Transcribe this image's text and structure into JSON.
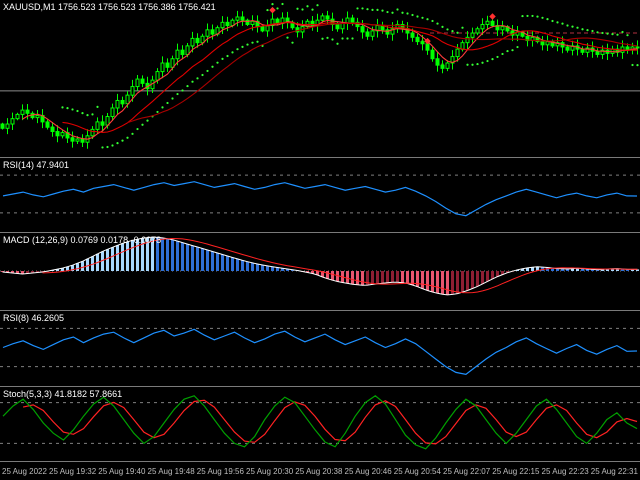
{
  "header": {
    "symbol_period_ohlc": "XAUUSD,M1 1756.523 1756.523 1756.386 1756.421"
  },
  "panel_labels": {
    "main": "XAUUSD,M1 1756.523 1756.523 1756.386 1756.421",
    "rsi14": "RSI(14) 47.9401",
    "macd": "MACD (12,26,9) 0.0769 0.0178 -0.0078",
    "rsi8": "RSI(8) 46.2605",
    "stoch": "Stoch(5,3,3) 41.8182 57.8661"
  },
  "colors": {
    "background": "#000000",
    "separator": "#7a7a7a",
    "candle": "#00ff00",
    "ma_fast": "#ff3b3b",
    "ma_mid": "#e00000",
    "ma_slow": "#a80000",
    "sar_dots": "#33ff33",
    "dotted_ma": "#e8d44d",
    "hline": "#8c8c8c",
    "ask_line": "#b23040",
    "marker": "#ff3030",
    "rsi_line": "#1e90ff",
    "macd_pos_light": "#a8d8ff",
    "macd_pos_dark": "#2e6fd6",
    "macd_neg_light": "#e8556e",
    "macd_neg_dark": "#8e1f33",
    "macd_line": "#ffffff",
    "signal_line": "#ff2222",
    "stoch_main": "#00a000",
    "stoch_signal": "#ff2222",
    "level_line": "#808080",
    "axis_text": "#bdbdbd"
  },
  "time_axis": {
    "labels": [
      "25 Aug 2022",
      "25 Aug 19:32",
      "25 Aug 19:40",
      "25 Aug 19:48",
      "25 Aug 19:56",
      "25 Aug 20:30",
      "25 Aug 20:38",
      "25 Aug 20:46",
      "25 Aug 20:54",
      "25 Aug 22:07",
      "25 Aug 22:15",
      "25 Aug 22:23",
      "25 Aug 22:31"
    ]
  },
  "chart_data": [
    {
      "type": "candlestick",
      "title": "XAUUSD,M1",
      "ohlc_display": [
        1756.523,
        1756.523,
        1756.386,
        1756.421
      ],
      "ylim": [
        1746.5,
        1760.7
      ],
      "closes": [
        1748.9,
        1749.3,
        1749.8,
        1750.2,
        1750.6,
        1750.3,
        1749.9,
        1750.1,
        1749.5,
        1749.0,
        1748.6,
        1748.2,
        1748.5,
        1748.0,
        1747.7,
        1747.9,
        1747.6,
        1748.2,
        1748.8,
        1749.5,
        1749.2,
        1750.0,
        1750.8,
        1751.5,
        1751.2,
        1752.0,
        1752.8,
        1753.5,
        1753.1,
        1752.6,
        1753.4,
        1754.2,
        1755.0,
        1754.6,
        1755.4,
        1756.2,
        1755.8,
        1756.6,
        1757.3,
        1756.9,
        1757.5,
        1758.1,
        1757.7,
        1758.3,
        1758.8,
        1758.5,
        1759.0,
        1759.3,
        1759.0,
        1758.6,
        1758.9,
        1758.4,
        1758.0,
        1758.5,
        1759.1,
        1758.7,
        1759.2,
        1758.8,
        1758.3,
        1757.9,
        1758.4,
        1758.9,
        1758.5,
        1759.0,
        1759.4,
        1759.1,
        1758.6,
        1758.2,
        1758.7,
        1759.2,
        1758.8,
        1758.4,
        1757.9,
        1757.5,
        1758.0,
        1758.5,
        1758.1,
        1757.7,
        1758.2,
        1758.6,
        1758.2,
        1757.8,
        1757.4,
        1757.0,
        1756.8,
        1756.2,
        1755.4,
        1754.8,
        1754.5,
        1755.0,
        1755.6,
        1756.3,
        1756.9,
        1757.4,
        1757.8,
        1758.2,
        1758.6,
        1758.9,
        1758.5,
        1758.1,
        1758.4,
        1758.0,
        1757.6,
        1757.9,
        1757.5,
        1757.1,
        1757.4,
        1757.0,
        1756.7,
        1757.0,
        1756.6,
        1756.9,
        1756.5,
        1756.2,
        1756.6,
        1756.3,
        1756.0,
        1756.4,
        1756.1,
        1755.8,
        1756.2,
        1755.9,
        1756.3,
        1756.0,
        1756.5,
        1756.2,
        1756.5,
        1756.42
      ],
      "overlays": {
        "ma_periods": [
          5,
          13,
          26
        ],
        "hline": 1752.4,
        "ask_dashed_line": {
          "price": 1757.8,
          "from_index": 86
        },
        "markers": [
          {
            "index": 54,
            "side": "above"
          },
          {
            "index": 85,
            "side": "above"
          },
          {
            "index": 98,
            "side": "above"
          }
        ]
      }
    },
    {
      "type": "line",
      "name": "RSI(14)",
      "current": 47.9401,
      "levels": [
        30,
        70
      ],
      "range": [
        15,
        85
      ],
      "values": [
        48,
        50,
        52,
        49,
        47,
        50,
        53,
        55,
        52,
        56,
        58,
        60,
        57,
        54,
        57,
        60,
        62,
        59,
        61,
        63,
        60,
        57,
        59,
        61,
        58,
        55,
        57,
        60,
        62,
        59,
        56,
        58,
        60,
        57,
        54,
        56,
        58,
        55,
        52,
        54,
        57,
        53,
        48,
        42,
        35,
        29,
        27,
        33,
        39,
        44,
        48,
        52,
        55,
        52,
        49,
        46,
        49,
        51,
        48,
        46,
        49,
        51,
        48,
        47.9
      ]
    },
    {
      "type": "bar",
      "name": "MACD(12,26,9)",
      "current": [
        0.0769,
        0.0178,
        -0.0078
      ],
      "zero_line": 0,
      "hist": [
        -0.05,
        -0.1,
        -0.15,
        -0.1,
        -0.05,
        0.05,
        0.15,
        0.3,
        0.5,
        0.75,
        1.0,
        1.2,
        1.4,
        1.55,
        1.65,
        1.7,
        1.65,
        1.55,
        1.4,
        1.25,
        1.1,
        0.95,
        0.8,
        0.65,
        0.5,
        0.38,
        0.28,
        0.2,
        0.12,
        0.05,
        -0.05,
        -0.15,
        -0.35,
        -0.5,
        -0.6,
        -0.68,
        -0.72,
        -0.65,
        -0.6,
        -0.55,
        -0.6,
        -0.75,
        -0.95,
        -1.1,
        -1.2,
        -1.15,
        -1.0,
        -0.8,
        -0.55,
        -0.3,
        -0.1,
        0.05,
        0.15,
        0.22,
        0.18,
        0.12,
        0.1,
        0.14,
        0.1,
        0.06,
        0.1,
        0.12,
        0.08,
        0.08
      ],
      "signal_derived": "sma9_of_macd"
    },
    {
      "type": "line",
      "name": "RSI(8)",
      "current": 46.2605,
      "levels": [
        30,
        70
      ],
      "range": [
        15,
        85
      ],
      "values": [
        50,
        54,
        57,
        52,
        48,
        53,
        58,
        61,
        55,
        60,
        64,
        66,
        60,
        55,
        60,
        65,
        68,
        62,
        65,
        69,
        63,
        58,
        62,
        66,
        60,
        55,
        59,
        64,
        67,
        61,
        56,
        60,
        64,
        58,
        53,
        57,
        61,
        55,
        50,
        54,
        59,
        54,
        46,
        38,
        30,
        24,
        22,
        30,
        38,
        45,
        50,
        56,
        60,
        54,
        49,
        44,
        49,
        53,
        47,
        43,
        48,
        52,
        46,
        46.3
      ]
    },
    {
      "type": "line",
      "name": "Stoch(5,3,3)",
      "current": [
        41.8182,
        57.8661
      ],
      "levels": [
        20,
        80
      ],
      "range": [
        0,
        100
      ],
      "k": [
        60,
        75,
        85,
        70,
        50,
        35,
        25,
        40,
        60,
        78,
        88,
        75,
        55,
        35,
        20,
        30,
        50,
        70,
        85,
        90,
        75,
        55,
        35,
        20,
        15,
        30,
        55,
        75,
        88,
        80,
        60,
        40,
        22,
        15,
        35,
        60,
        80,
        90,
        78,
        55,
        32,
        18,
        12,
        28,
        50,
        70,
        85,
        75,
        55,
        35,
        20,
        35,
        55,
        75,
        85,
        70,
        50,
        30,
        20,
        35,
        55,
        65,
        50,
        41.8
      ],
      "d_derived": "sma3_of_k"
    }
  ]
}
